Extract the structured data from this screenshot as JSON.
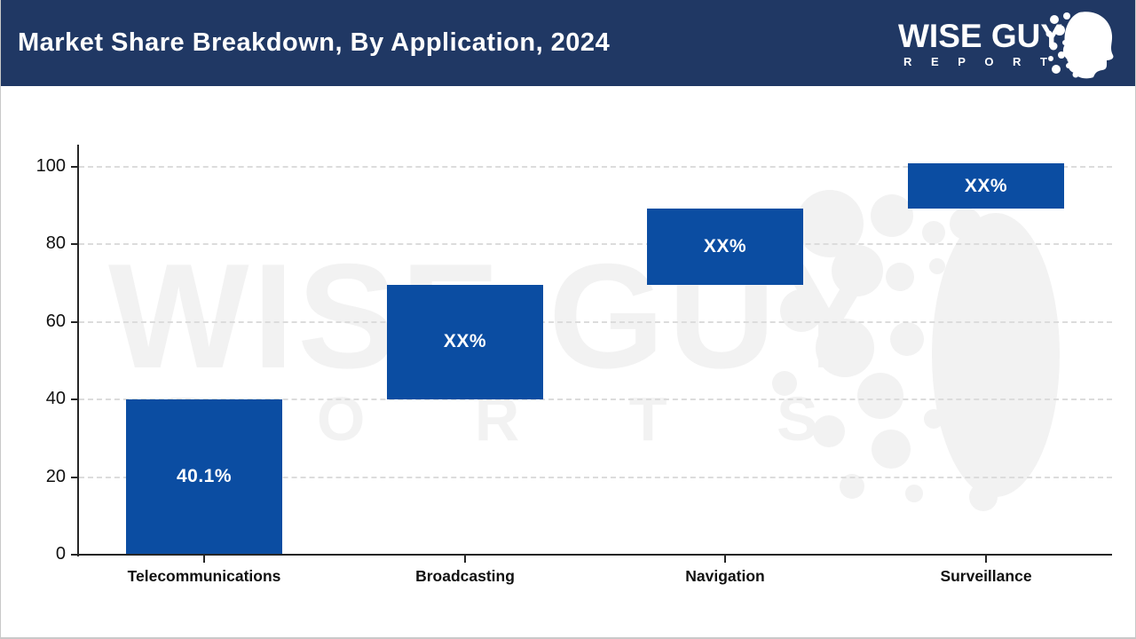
{
  "header": {
    "title": "Market Share Breakdown, By Application, 2024",
    "bg_color": "#203864",
    "logo": {
      "line1": "WISE GUY",
      "line2": "R E P O R T S",
      "head_icon": "wiseguy-head-icon"
    }
  },
  "watermark": {
    "line1": "WISE GUY",
    "line2": "P O R T S"
  },
  "chart_data": {
    "type": "bar",
    "subtype": "waterfall",
    "title": "Market Share Breakdown, By Application, 2024",
    "categories": [
      "Telecommunications",
      "Broadcasting",
      "Navigation",
      "Surveillance"
    ],
    "segments": [
      {
        "category": "Telecommunications",
        "start": 0,
        "end": 40.1,
        "value_label": "40.1%"
      },
      {
        "category": "Broadcasting",
        "start": 40.1,
        "end": 69.5,
        "value_label": "XX%"
      },
      {
        "category": "Navigation",
        "start": 69.5,
        "end": 89.1,
        "value_label": "XX%"
      },
      {
        "category": "Surveillance",
        "start": 89.1,
        "end": 100.8,
        "value_label": "XX%"
      }
    ],
    "yticks": [
      0,
      20,
      40,
      60,
      80,
      100
    ],
    "ylim": [
      0,
      105.6
    ],
    "xlabel": "",
    "ylabel": "",
    "grid": "horizontal-dashed",
    "legend": "none",
    "bar_color": "#0b4da2",
    "value_label_color": "#ffffff",
    "axis_color": "#262626",
    "gridline_color": "#dcdcdc"
  }
}
